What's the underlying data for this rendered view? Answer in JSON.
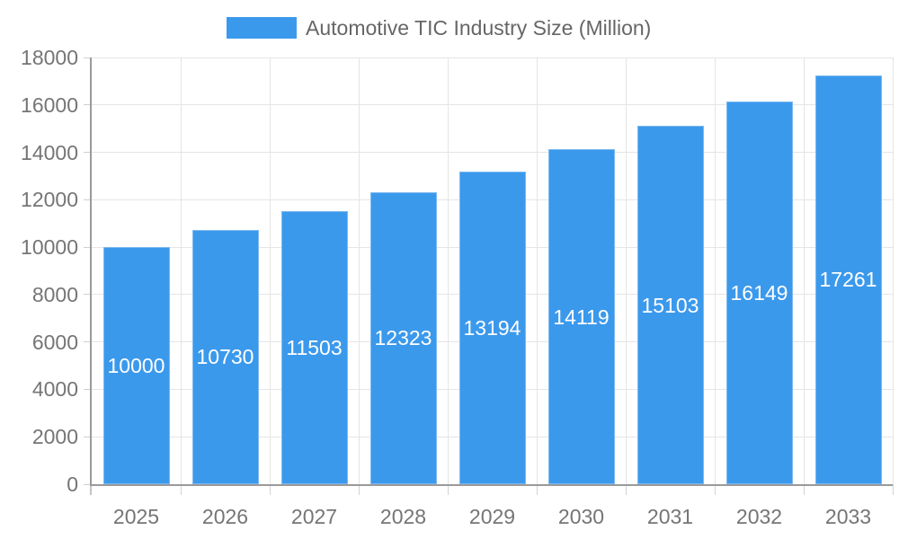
{
  "chart_data": {
    "type": "bar",
    "title": "Automotive TIC Industry Size (Million)",
    "legend": {
      "label": "Automotive TIC Industry Size (Million)",
      "position": "top-center"
    },
    "categories": [
      "2025",
      "2026",
      "2027",
      "2028",
      "2029",
      "2030",
      "2031",
      "2032",
      "2033"
    ],
    "series": [
      {
        "name": "Automotive TIC Industry Size (Million)",
        "values": [
          10000,
          10730,
          11503,
          12323,
          13194,
          14119,
          15103,
          16149,
          17261
        ]
      }
    ],
    "data_labels": {
      "visible": true,
      "position": "inside-center",
      "color": "#FFFFFF"
    },
    "xlabel": "",
    "ylabel": "",
    "ylim": [
      0,
      18000
    ],
    "y_ticks": [
      0,
      2000,
      4000,
      6000,
      8000,
      10000,
      12000,
      14000,
      16000,
      18000
    ],
    "grid": true,
    "colors": {
      "bar_fill": "#3B99EC",
      "bar_border": "#7CB9F2",
      "grid_line": "#E5E5E5",
      "axis_line": "#9A9A9A",
      "tick_line": "#CFCFCF",
      "axis_text": "#757575",
      "legend_text": "#666666",
      "data_label_text": "#FFFFFF",
      "background": "#FFFFFF"
    }
  }
}
